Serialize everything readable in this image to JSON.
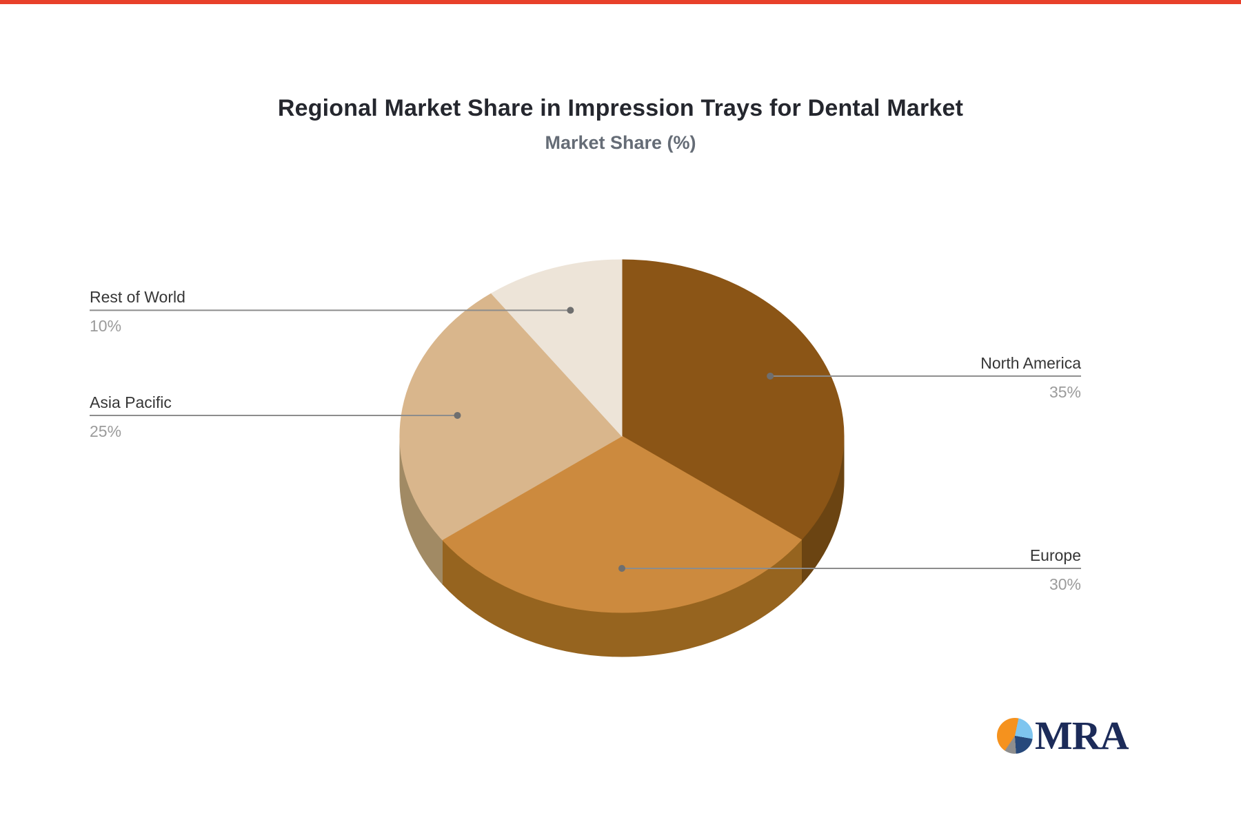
{
  "page": {
    "top_bar_color": "#e8402a",
    "background_color": "#ffffff"
  },
  "header": {
    "title": "Regional Market Share in Impression Trays for Dental Market",
    "subtitle": "Market Share (%)"
  },
  "chart_data": {
    "type": "pie",
    "style": "3d",
    "title": "Regional Market Share in Impression Trays for Dental Market",
    "subtitle": "Market Share (%)",
    "unit": "%",
    "start_angle_deg": 0,
    "direction": "clockwise",
    "legend_position": "none",
    "slices": [
      {
        "label": "North America",
        "value": 35,
        "pct_text": "35%",
        "color": "#8B5516",
        "rim_color": "#6B4412"
      },
      {
        "label": "Europe",
        "value": 30,
        "pct_text": "30%",
        "color": "#CC8A3E",
        "rim_color": "#96641F"
      },
      {
        "label": "Asia Pacific",
        "value": 25,
        "pct_text": "25%",
        "color": "#D9B68C",
        "rim_color": "#A18A64"
      },
      {
        "label": "Rest of World",
        "value": 10,
        "pct_text": "10%",
        "color": "#EDE4D8",
        "rim_color": "#C9BCA8"
      }
    ],
    "leader_line_color": "#8c8c8c",
    "leader_dot_color": "#6f6f6f",
    "label_color": "#363636",
    "pct_color": "#9b9b9b"
  },
  "logo": {
    "text": "MRA",
    "text_color": "#1c2b59",
    "icon": "pie-chart-icon",
    "icon_colors": {
      "orange": "#F5921E",
      "light_blue": "#7EC5EF",
      "navy": "#27497B",
      "gray": "#8E8E8E"
    }
  }
}
